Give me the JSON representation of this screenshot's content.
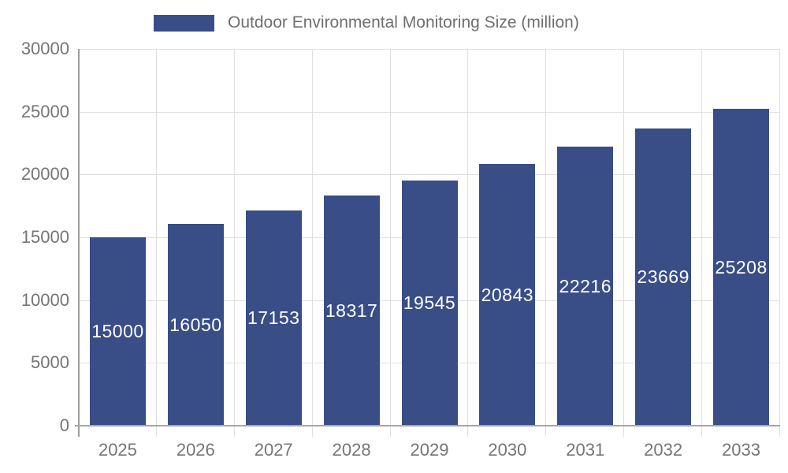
{
  "chart_data": {
    "type": "bar",
    "title": "Outdoor Environmental Monitoring Size (million)",
    "categories": [
      "2025",
      "2026",
      "2027",
      "2028",
      "2029",
      "2030",
      "2031",
      "2032",
      "2033"
    ],
    "values": [
      15000,
      16050,
      17153,
      18317,
      19545,
      20843,
      22216,
      23669,
      25208
    ],
    "xlabel": "",
    "ylabel": "",
    "ylim": [
      0,
      30000
    ],
    "yticks": [
      0,
      5000,
      10000,
      15000,
      20000,
      25000,
      30000
    ],
    "grid": true,
    "legend_position": "top",
    "bar_labels": [
      "15000",
      "16050",
      "17153",
      "18317",
      "19545",
      "20843",
      "22216",
      "23669",
      "25208"
    ],
    "colors": {
      "bar": "#394e87",
      "bar_label_text": "#ffffff",
      "axis_text": "#757575",
      "legend_text": "#6f6f6f",
      "gridline": "#e0e0e0",
      "axis_line": "#a0a0a0"
    }
  }
}
